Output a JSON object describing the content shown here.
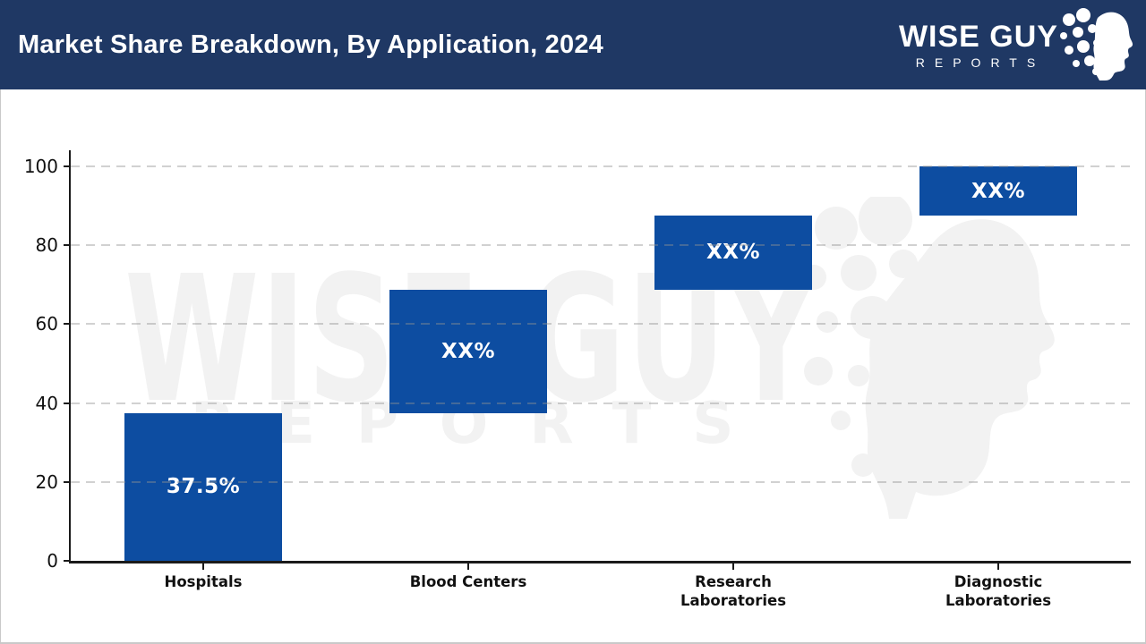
{
  "header": {
    "title": "Market Share Breakdown, By Application, 2024",
    "logo": {
      "wordmark": "WISE GUY",
      "subtext": "REPORTS"
    }
  },
  "watermark": {
    "wordmark": "WISE GUY",
    "subtext": "REPORTS"
  },
  "chart_data": {
    "type": "bar",
    "subtype": "floating-waterfall",
    "title": "Market Share Breakdown, By Application, 2024",
    "categories": [
      "Hospitals",
      "Blood Centers",
      "Research\nLaboratories",
      "Diagnostic\nLaboratories"
    ],
    "series": [
      {
        "name": "Market share (%)",
        "segments": [
          {
            "category": "Hospitals",
            "start": 0,
            "end": 37.5,
            "label": "37.5%"
          },
          {
            "category": "Blood Centers",
            "start": 37.5,
            "end": 68.75,
            "label": "XX%"
          },
          {
            "category": "Research Laboratories",
            "start": 68.75,
            "end": 87.5,
            "label": "XX%"
          },
          {
            "category": "Diagnostic Laboratories",
            "start": 87.5,
            "end": 100,
            "label": "XX%"
          }
        ]
      }
    ],
    "yticks": [
      0,
      20,
      40,
      60,
      80,
      100
    ],
    "ylim": [
      0,
      105
    ],
    "xlabel": "",
    "ylabel": "",
    "grid": "horizontal-dashed",
    "legend": "none",
    "bar_color": "#0d4da1",
    "bar_label_color": "#ffffff"
  },
  "colors": {
    "header_bg": "#1f3864",
    "bar": "#0d4da1",
    "axis": "#1a1a1a",
    "grid": "#cfcfcf",
    "watermark": "#f2f2f2",
    "canvas_border": "#c9c9c9"
  }
}
